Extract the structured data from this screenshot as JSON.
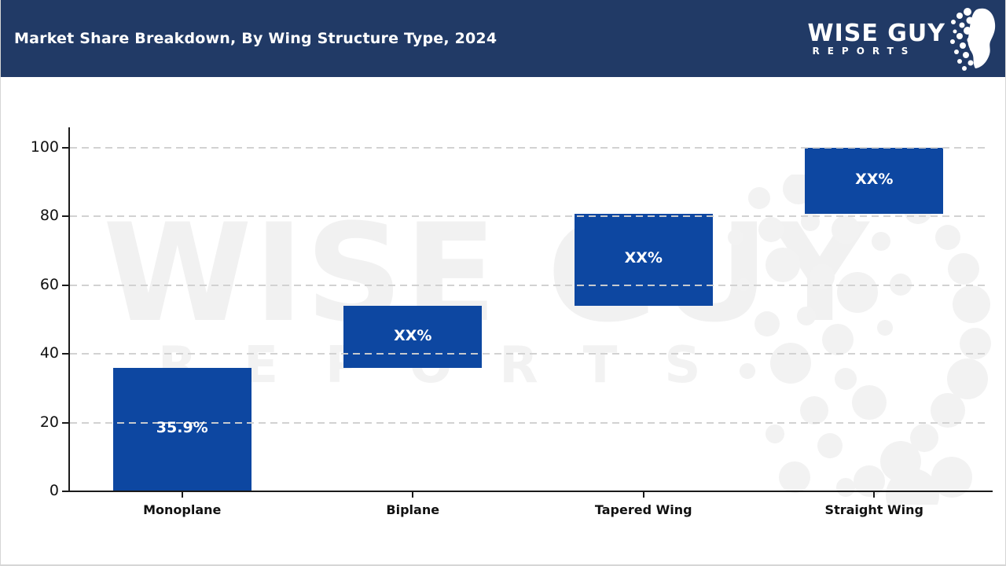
{
  "header": {
    "title": "Market Share Breakdown, By Wing Structure Type, 2024",
    "logo": {
      "line1": "WISE GUY",
      "line2": "REPORTS"
    }
  },
  "watermark": {
    "line1": "WISE GUY",
    "line2": "REPORTS"
  },
  "chart_data": {
    "type": "bar",
    "variant": "waterfall-floating-segments",
    "title": "Market Share Breakdown, By Wing Structure Type, 2024",
    "categories": [
      "Monoplane",
      "Biplane",
      "Tapered Wing",
      "Straight Wing"
    ],
    "segments": [
      {
        "category": "Monoplane",
        "start": 0,
        "end": 35.9,
        "label": "35.9%"
      },
      {
        "category": "Biplane",
        "start": 35.9,
        "end": 53.9,
        "label": "XX%"
      },
      {
        "category": "Tapered Wing",
        "start": 53.9,
        "end": 80.8,
        "label": "XX%"
      },
      {
        "category": "Straight Wing",
        "start": 80.8,
        "end": 100,
        "label": "XX%"
      }
    ],
    "xlabel": "",
    "ylabel": "",
    "ylim": [
      0,
      106
    ],
    "yticks": [
      0,
      20,
      40,
      60,
      80,
      100
    ],
    "grid": "horizontal-dashed",
    "legend": "none",
    "colors": {
      "bar": "#0d47a1",
      "bar_label": "#ffffff",
      "axis": "#1a1a1a",
      "gridline": "#d9d9d9",
      "header_bg": "#213a66",
      "watermark": "#f1f1f1"
    }
  }
}
